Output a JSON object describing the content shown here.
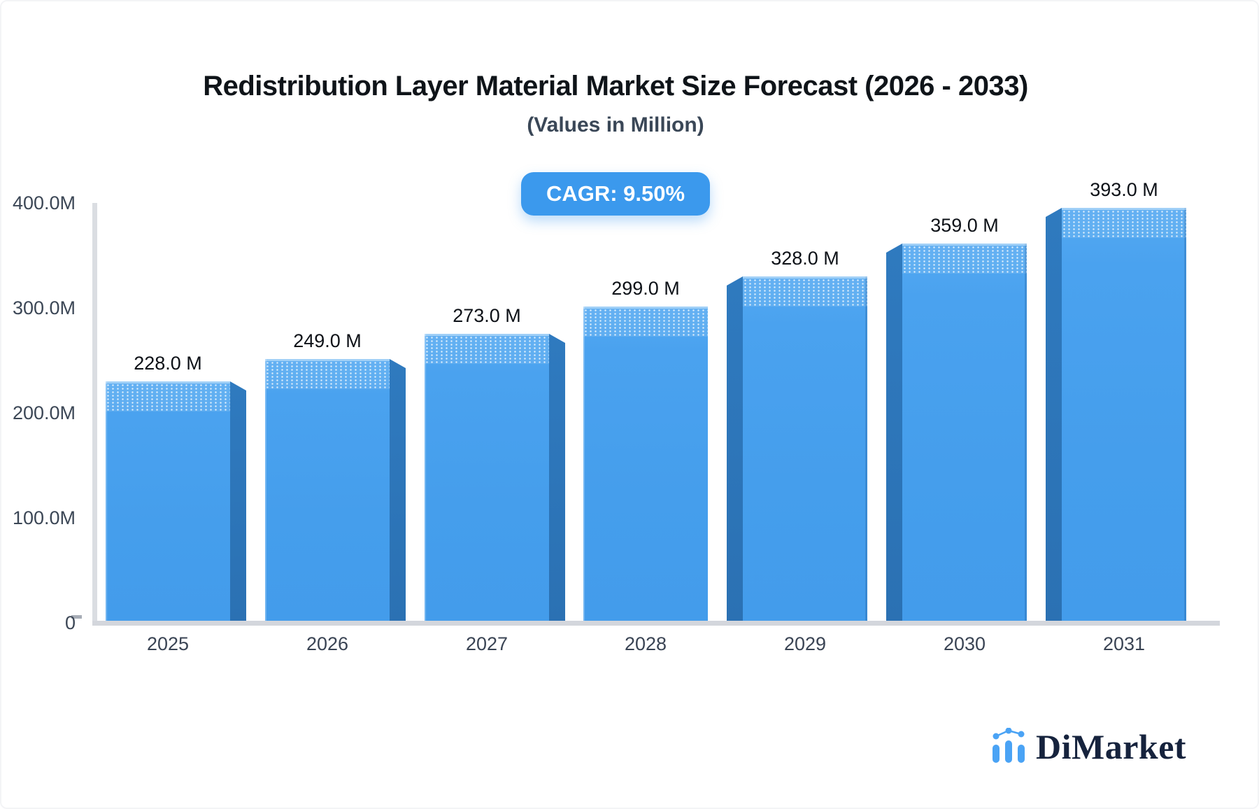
{
  "header": {
    "title": "Redistribution Layer Material Market Size Forecast (2026 - 2033)",
    "subtitle": "(Values in Million)",
    "cagr_label": "CAGR: 9.50%"
  },
  "chart_data": {
    "type": "bar",
    "title": "Redistribution Layer Material Market Size Forecast (2026 - 2033)",
    "subtitle": "(Values in Million)",
    "unit": "Million",
    "cagr_percent": "9.50%",
    "categories": [
      "2025",
      "2026",
      "2027",
      "2028",
      "2029",
      "2030",
      "2031"
    ],
    "values": [
      228,
      249,
      273,
      299,
      328,
      359,
      393
    ],
    "value_labels": [
      "228.0 M",
      "249.0 M",
      "273.0 M",
      "299.0 M",
      "328.0 M",
      "359.0 M",
      "393.0 M"
    ],
    "y_ticks": [
      {
        "label": "400.0M",
        "value": 400
      },
      {
        "label": "300.0M",
        "value": 300
      },
      {
        "label": "200.0M",
        "value": 200
      },
      {
        "label": "100.0M",
        "value": 100
      },
      {
        "label": "0",
        "value": 0
      }
    ],
    "ylim": [
      0,
      400
    ],
    "xlabel": "",
    "ylabel": "",
    "grid": false,
    "legend": false,
    "colors": {
      "bar_face": "#459EEC",
      "bar_side": "#2C76BA",
      "badge_blue": "#3B99ED",
      "axis_gray": "#DADDE2",
      "tick_text": "#3C4756",
      "label_text": "#0D1117",
      "logo_navy": "#16233D",
      "logo_blue": "#4AA3F5"
    }
  },
  "footer": {
    "brand": "DiMarket",
    "logo_icon": "bar-chart-logo-icon"
  }
}
